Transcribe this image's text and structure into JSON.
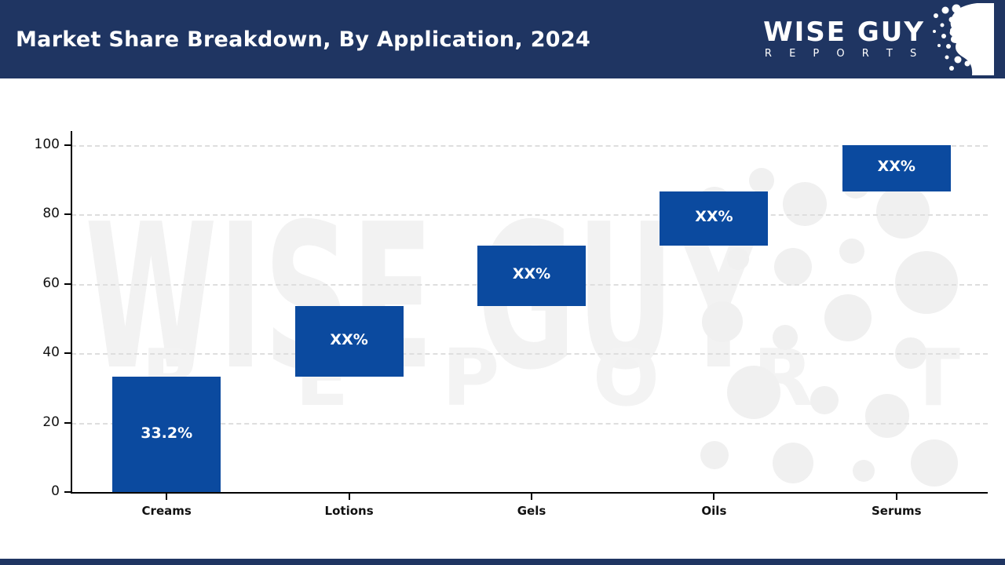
{
  "header": {
    "title": "Market Share Breakdown, By Application, 2024",
    "background": "#1f3562",
    "text_color": "#ffffff",
    "logo": {
      "line1": "WISE GUY",
      "line2": "R E P O R T S"
    }
  },
  "watermark": {
    "line1": "WISE GUY",
    "line2": "R E P O R T S"
  },
  "chart_data": {
    "type": "bar",
    "subtype": "waterfall-floating-bars",
    "title": "Market Share Breakdown, By Application, 2024",
    "categories": [
      "Creams",
      "Lotions",
      "Gels",
      "Oils",
      "Serums"
    ],
    "segments": [
      {
        "category": "Creams",
        "start": 0,
        "end": 33.2,
        "label": "33.2%"
      },
      {
        "category": "Lotions",
        "start": 33.2,
        "end": 53.6,
        "label": "XX%"
      },
      {
        "category": "Gels",
        "start": 53.6,
        "end": 71.1,
        "label": "XX%"
      },
      {
        "category": "Oils",
        "start": 71.1,
        "end": 86.7,
        "label": "XX%"
      },
      {
        "category": "Serums",
        "start": 86.7,
        "end": 100,
        "label": "XX%"
      }
    ],
    "bar_color": "#0b4a9f",
    "bar_label_color": "#ffffff",
    "xlabel": "",
    "ylabel": "",
    "ylim": [
      0,
      100
    ],
    "yticks": [
      0,
      20,
      40,
      60,
      80,
      100
    ],
    "grid": "horizontal-dashed",
    "gridline_color": "#dedede",
    "axis_color": "#000000",
    "legend": "none"
  },
  "footer": {
    "bar_color": "#1f3562"
  }
}
